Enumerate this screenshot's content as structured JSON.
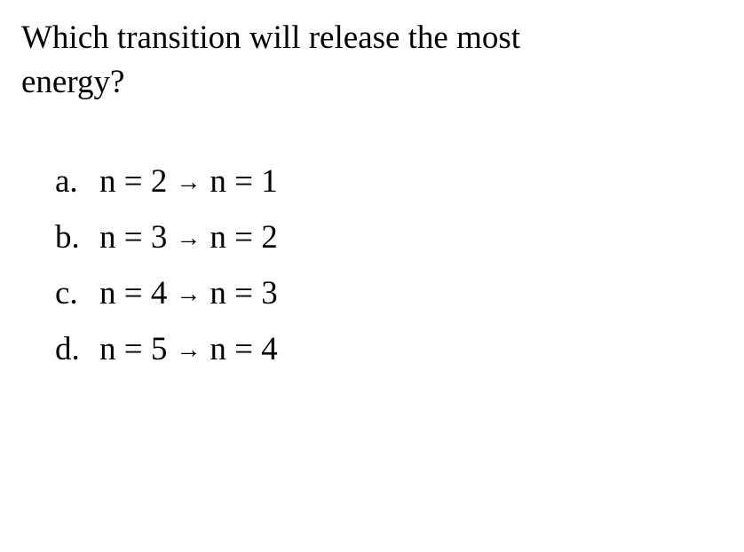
{
  "text_color": "#000000",
  "background_color": "#ffffff",
  "font_family": "Times New Roman",
  "question_fontsize": 37,
  "option_fontsize": 37,
  "question": {
    "line1": "Which transition will release the most",
    "line2": "energy?"
  },
  "options": [
    {
      "letter": "a.",
      "lhs": "n = 2",
      "arrow": "→",
      "rhs": "n = 1"
    },
    {
      "letter": "b.",
      "lhs": "n = 3",
      "arrow": "→",
      "rhs": "n = 2"
    },
    {
      "letter": "c.",
      "lhs": "n = 4",
      "arrow": "→",
      "rhs": "n = 3"
    },
    {
      "letter": "d.",
      "lhs": "n = 5",
      "arrow": "→",
      "rhs": "n = 4"
    }
  ]
}
